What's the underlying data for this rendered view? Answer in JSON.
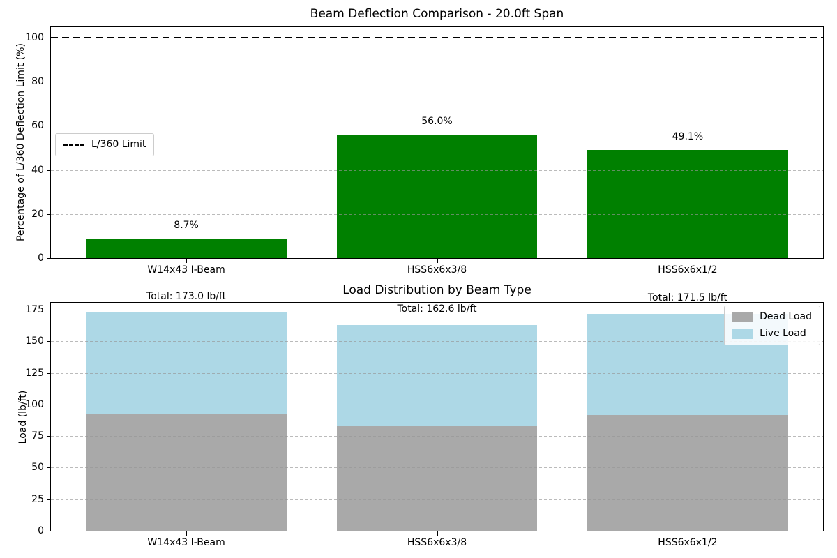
{
  "figure": {
    "background": "#ffffff"
  },
  "chart_data": [
    {
      "type": "bar",
      "title": "Beam Deflection Comparison - 20.0ft Span",
      "ylabel": "Percentage of L/360 Deflection Limit (%)",
      "categories": [
        "W14x43 I-Beam",
        "HSS6x6x3/8",
        "HSS6x6x1/2"
      ],
      "values": [
        8.7,
        56.0,
        49.1
      ],
      "bar_labels": [
        "8.7%",
        "56.0%",
        "49.1%"
      ],
      "bar_color": "#008000",
      "yticks": [
        0,
        20,
        40,
        60,
        80,
        100
      ],
      "ylim": [
        0,
        105
      ],
      "grid": true,
      "grid_style": "dashed",
      "ref_line": {
        "value": 100,
        "label": "L/360 Limit",
        "color": "#000000",
        "style": "dashed"
      },
      "legend_position": "center-left"
    },
    {
      "type": "stacked-bar",
      "title": "Load Distribution by Beam Type",
      "ylabel": "Load (lb/ft)",
      "categories": [
        "W14x43 I-Beam",
        "HSS6x6x3/8",
        "HSS6x6x1/2"
      ],
      "series": [
        {
          "name": "Dead Load",
          "color": "#a9a9a9",
          "values": [
            93.0,
            82.6,
            91.5
          ]
        },
        {
          "name": "Live Load",
          "color": "#add8e6",
          "values": [
            80.0,
            80.0,
            80.0
          ]
        }
      ],
      "totals": [
        173.0,
        162.6,
        171.5
      ],
      "total_labels": [
        "Total: 173.0 lb/ft",
        "Total: 162.6 lb/ft",
        "Total: 171.5 lb/ft"
      ],
      "yticks": [
        0,
        25,
        50,
        75,
        100,
        125,
        150,
        175
      ],
      "ylim": [
        0,
        180.5
      ],
      "grid": true,
      "grid_style": "dashed",
      "legend_position": "top-right"
    }
  ]
}
